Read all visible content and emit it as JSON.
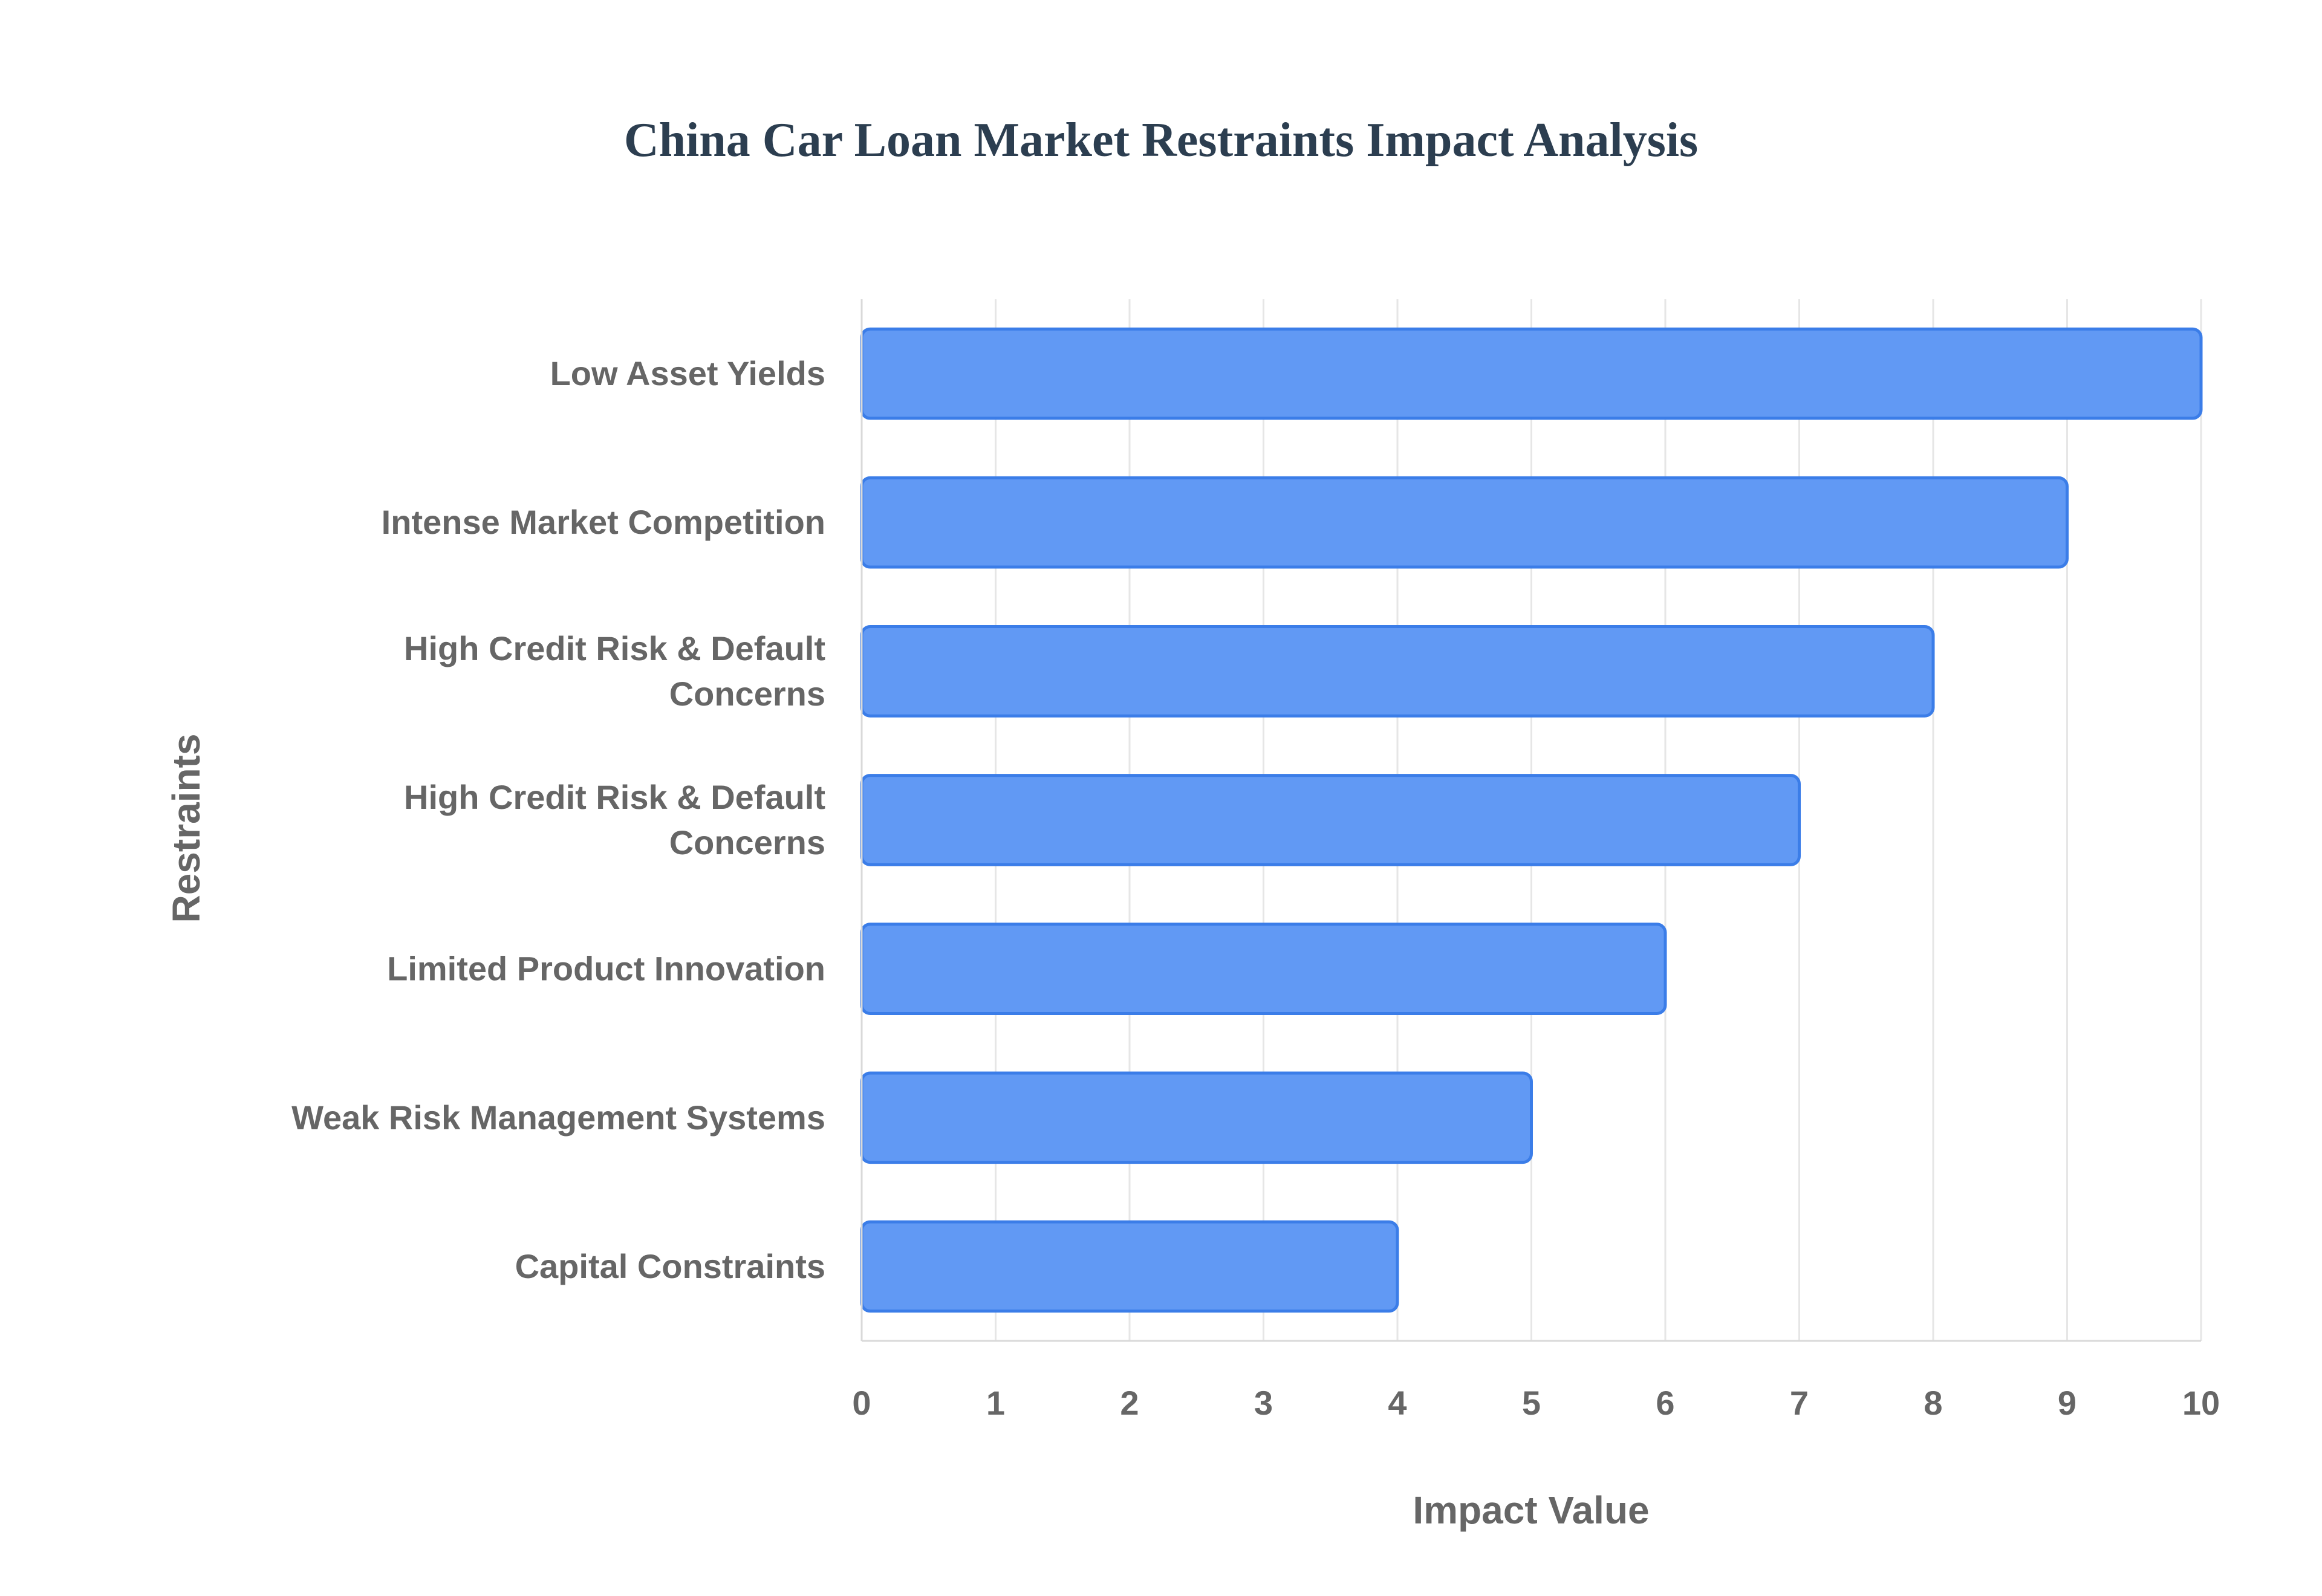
{
  "chart_data": {
    "type": "bar",
    "orientation": "horizontal",
    "title": "China Car Loan Market Restraints Impact Analysis",
    "xlabel": "Impact Value",
    "ylabel": "Restraints",
    "xlim": [
      0,
      10
    ],
    "x_ticks": [
      "0",
      "1",
      "2",
      "3",
      "4",
      "5",
      "6",
      "7",
      "8",
      "9",
      "10"
    ],
    "grid": true,
    "legend": "none",
    "bar_color": "#6199f4",
    "bar_border_color": "#3b7de8",
    "categories": [
      [
        "Low Asset Yields"
      ],
      [
        "Intense Market Competition"
      ],
      [
        "High Credit Risk & Default",
        "Concerns"
      ],
      [
        "High Credit Risk & Default",
        "Concerns"
      ],
      [
        "Limited Product Innovation"
      ],
      [
        "Weak Risk Management Systems"
      ],
      [
        "Capital Constraints"
      ]
    ],
    "values": [
      10,
      9,
      8,
      7,
      6,
      5,
      4
    ]
  }
}
